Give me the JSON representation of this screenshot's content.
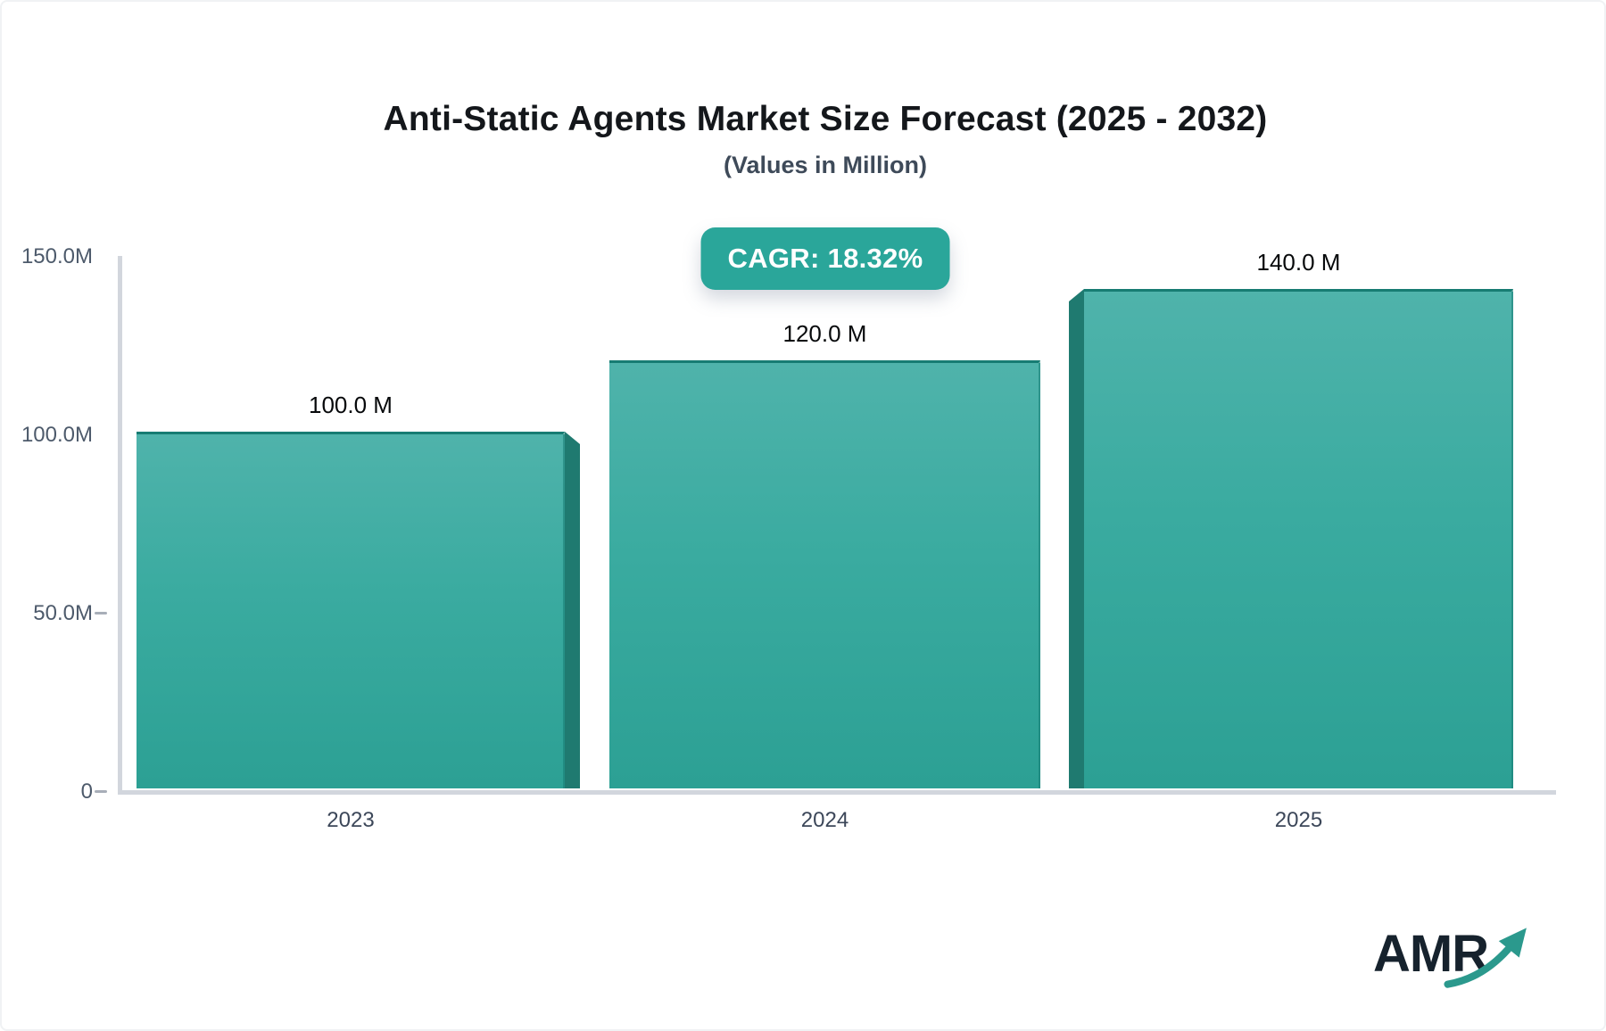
{
  "header": {
    "title": "Anti-Static Agents Market Size Forecast (2025 - 2032)",
    "subtitle": "(Values in Million)",
    "cagr_badge_label": "CAGR: 18.32%"
  },
  "chart_data": {
    "type": "bar",
    "title": "Anti-Static Agents Market Size Forecast (2025 - 2032)",
    "subtitle": "(Values in Million)",
    "cagr_percent": 18.32,
    "categories": [
      "2023",
      "2024",
      "2025"
    ],
    "values": [
      100.0,
      120.0,
      140.0
    ],
    "value_labels": [
      "100.0 M",
      "120.0 M",
      "140.0 M"
    ],
    "ytick_labels": [
      "150.0M",
      "100.0M",
      "50.0M",
      "0"
    ],
    "ytick_values": [
      150,
      100,
      50,
      0
    ],
    "ylim": [
      0,
      150
    ],
    "grid": false,
    "legend": false,
    "colors": {
      "bar_gradient_top": "#4fb3ab",
      "bar_gradient_bottom": "#2ca094",
      "bar_side_shadow": "#1f7a70",
      "bar_top_border": "#177c73",
      "badge_background": "#2aa69a",
      "axis_line": "#d2d6dd",
      "label_text": "#4d5a6b"
    }
  },
  "branding": {
    "logo_text": "AMR",
    "logo_arrow_color": "#2b998d"
  }
}
